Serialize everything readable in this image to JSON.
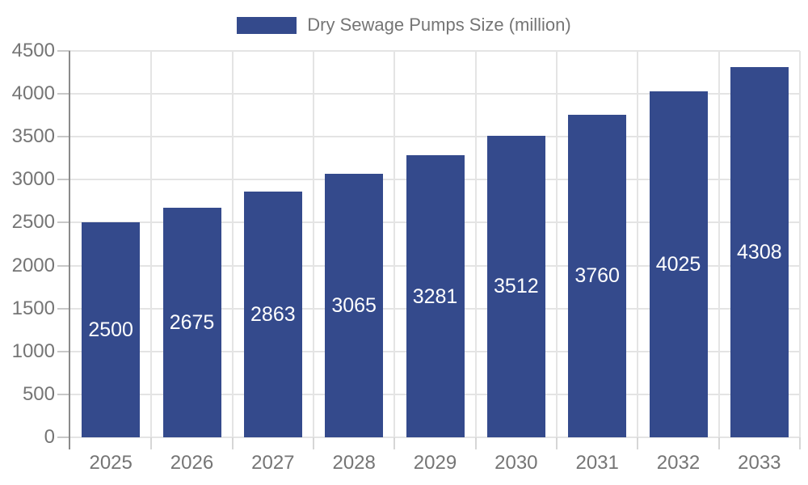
{
  "chart_data": {
    "type": "bar",
    "legend": [
      "Dry Sewage Pumps Size (million)"
    ],
    "categories": [
      "2025",
      "2026",
      "2027",
      "2028",
      "2029",
      "2030",
      "2031",
      "2032",
      "2033"
    ],
    "series": [
      {
        "name": "Dry Sewage Pumps Size (million)",
        "values": [
          2500,
          2675,
          2863,
          3065,
          3281,
          3512,
          3760,
          4025,
          4308
        ]
      }
    ],
    "bar_value_labels": [
      "2500",
      "2675",
      "2863",
      "3065",
      "3281",
      "3512",
      "3760",
      "4025",
      "4308"
    ],
    "xlabel": "",
    "ylabel": "",
    "ylim": [
      0,
      4500
    ],
    "yticks": [
      0,
      500,
      1000,
      1500,
      2000,
      2500,
      3000,
      3500,
      4000,
      4500
    ],
    "grid": true,
    "legend_position": "top-center",
    "colors": {
      "bar": "#344A8C",
      "bar_label": "#FFFFFF",
      "axis_text": "#757575",
      "grid_line": "#E4E4E4",
      "axis_line": "#8A8A8A",
      "y_tick": "#C8C8C8",
      "x_tick": "#D6D6D6",
      "background": "#FFFFFF"
    }
  }
}
